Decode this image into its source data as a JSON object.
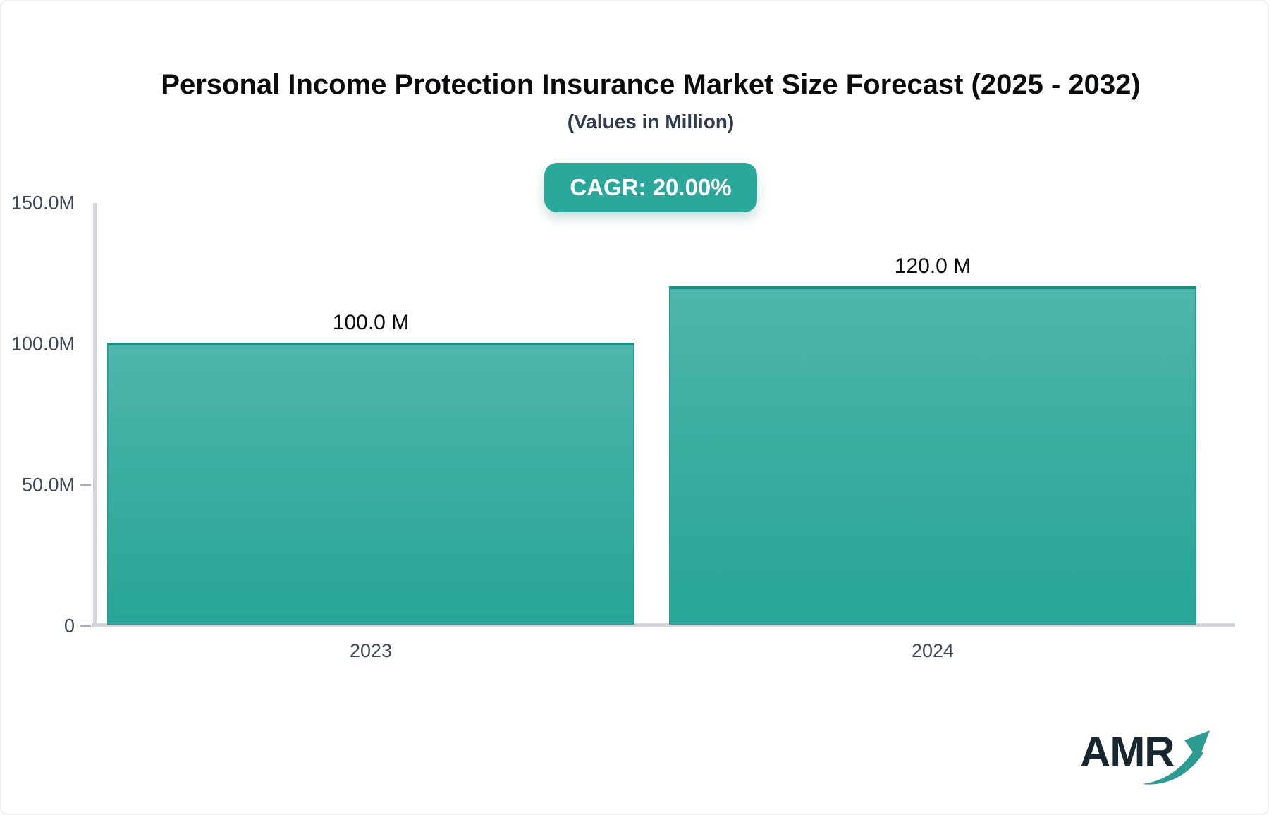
{
  "header": {
    "title": "Personal Income Protection Insurance Market Size Forecast (2025 - 2032)",
    "subtitle": "(Values in Million)",
    "cagr_badge": "CAGR: 20.00%"
  },
  "logo": {
    "text": "AMR",
    "arrow_icon": "growth-arrow-icon"
  },
  "colors": {
    "accent_teal": "#2ba79b",
    "bar_gradient_top": "#50b6ac",
    "bar_gradient_bottom": "#27a598",
    "bar_border": "#1b8e84",
    "axis_gray": "#d2d6dc",
    "label_slate": "#3c4857",
    "logo_dark": "#17262f"
  },
  "chart_data": {
    "type": "bar",
    "title": "Personal Income Protection Insurance Market Size Forecast (2025 - 2032)",
    "subtitle": "(Values in Million)",
    "unit": "Million",
    "categories": [
      "2023",
      "2024"
    ],
    "values": [
      100.0,
      120.0
    ],
    "value_labels": [
      "100.0 M",
      "120.0 M"
    ],
    "cagr_percent": 20.0,
    "xlabel": "",
    "ylabel": "",
    "ylim": [
      0,
      150
    ],
    "yticks": [
      {
        "label": "150.0M",
        "value": 150,
        "dash": false
      },
      {
        "label": "100.0M",
        "value": 100,
        "dash": false
      },
      {
        "label": "50.0M",
        "value": 50,
        "dash": true
      },
      {
        "label": "0",
        "value": 0,
        "dash": true
      }
    ],
    "grid": false,
    "legend": "none"
  }
}
